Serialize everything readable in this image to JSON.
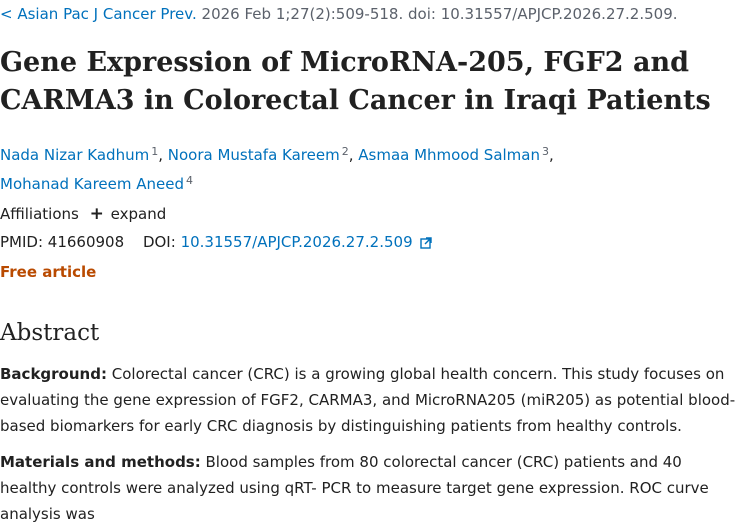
{
  "citation": {
    "arrow": "<",
    "journal": "Asian Pac J Cancer Prev.",
    "details": "2026 Feb 1;27(2):509-518. doi: 10.31557/APJCP.2026.27.2.509."
  },
  "title": "Gene Expression of MicroRNA-205, FGF2 and CARMA3 in Colorectal Cancer in Iraqi Patients",
  "authors": [
    {
      "name": "Nada Nizar Kadhum",
      "aff": "1"
    },
    {
      "name": "Noora Mustafa Kareem",
      "aff": "2"
    },
    {
      "name": "Asmaa Mhmood Salman",
      "aff": "3"
    },
    {
      "name": "Mohanad Kareem Aneed",
      "aff": "4"
    }
  ],
  "affiliations": {
    "label": "Affiliations",
    "toggle_symbol": "+",
    "toggle_label": "expand"
  },
  "ids": {
    "pmid_label": "PMID:",
    "pmid": "41660908",
    "doi_label": "DOI:",
    "doi": "10.31557/APJCP.2026.27.2.509"
  },
  "free_label": "Free article",
  "abstract": {
    "heading": "Abstract",
    "background_label": "Background:",
    "background_text": "Colorectal cancer (CRC) is a growing global health concern. This study focuses on evaluating the gene expression of FGF2, CARMA3, and MicroRNA205 (miR205) as potential blood-based biomarkers for early CRC diagnosis by distinguishing patients from healthy controls.",
    "methods_label": "Materials and methods:",
    "methods_text": "Blood samples from 80 colorectal cancer (CRC) patients and 40 healthy controls were analyzed using qRT- PCR to measure target gene expression. ROC curve analysis was"
  },
  "colors": {
    "link": "#0071bc",
    "free": "#b94a00",
    "text": "#212121",
    "muted": "#5b616b"
  },
  "icons": {
    "external_link": "external-link-icon",
    "plus": "plus-icon"
  }
}
